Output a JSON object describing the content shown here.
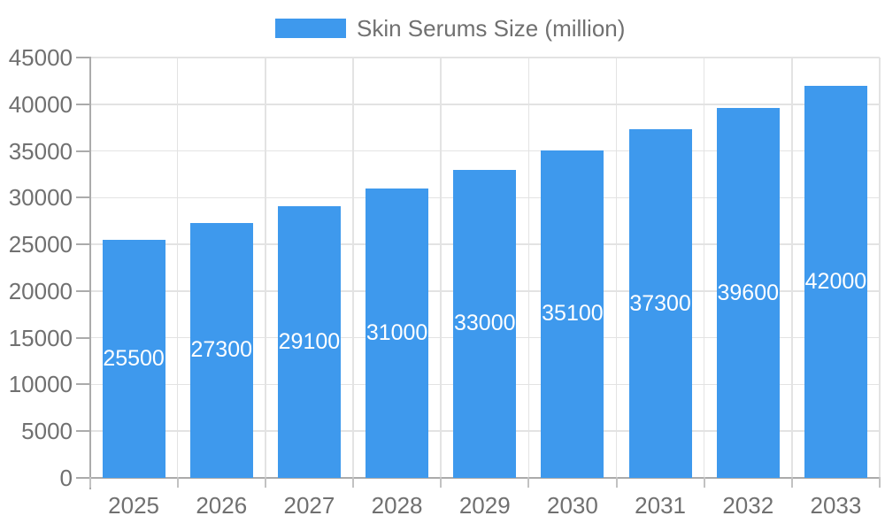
{
  "chart_data": {
    "type": "bar",
    "title": "",
    "xlabel": "",
    "ylabel": "",
    "categories": [
      "2025",
      "2026",
      "2027",
      "2028",
      "2029",
      "2030",
      "2031",
      "2032",
      "2033"
    ],
    "series": [
      {
        "name": "Skin Serums Size (million)",
        "values": [
          25500,
          27300,
          29100,
          31000,
          33000,
          35100,
          37300,
          39600,
          42000
        ]
      }
    ],
    "bar_value_labels": [
      "25500",
      "27300",
      "29100",
      "31000",
      "33000",
      "35100",
      "37300",
      "39600",
      "42000"
    ],
    "ylim": [
      0,
      45000
    ],
    "ytick_step": 5000,
    "ytick_labels": [
      "0",
      "5000",
      "10000",
      "15000",
      "20000",
      "25000",
      "30000",
      "35000",
      "40000",
      "45000"
    ],
    "grid": true,
    "legend_position": "top",
    "colors": {
      "bar": "#3E99ED",
      "bar_label": "#FFFFFF",
      "axis_text": "#707070",
      "axis_line": "#ABABAB",
      "tick": "#C2C2C2",
      "gridline": "#E3E3E3",
      "background": "#FFFFFF"
    }
  }
}
